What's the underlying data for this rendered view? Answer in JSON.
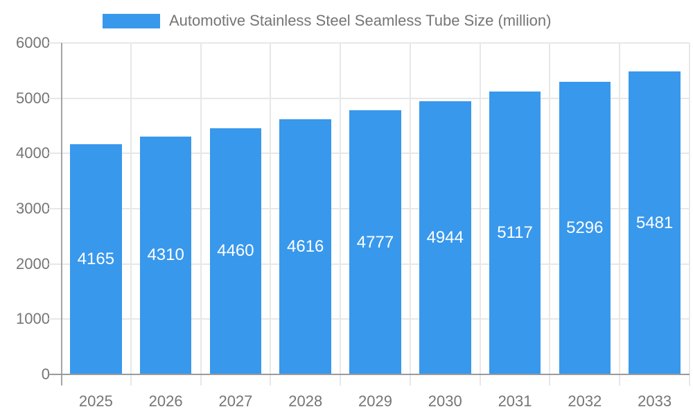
{
  "legend": {
    "label": "Automotive Stainless Steel Seamless Tube Size (million)"
  },
  "chart_data": {
    "type": "bar",
    "title": "",
    "xlabel": "",
    "ylabel": "",
    "categories": [
      "2025",
      "2026",
      "2027",
      "2028",
      "2029",
      "2030",
      "2031",
      "2032",
      "2033"
    ],
    "series": [
      {
        "name": "Automotive Stainless Steel Seamless Tube Size (million)",
        "values": [
          4165,
          4310,
          4460,
          4616,
          4777,
          4944,
          5117,
          5296,
          5481
        ]
      }
    ],
    "bar_value_labels": [
      "4165",
      "4310",
      "4460",
      "4616",
      "4777",
      "4944",
      "5117",
      "5296",
      "5481"
    ],
    "bar_label_position": "center-inside",
    "ylim": [
      0,
      6000
    ],
    "yticks": [
      0,
      1000,
      2000,
      3000,
      4000,
      5000,
      6000
    ],
    "ytick_labels": [
      "0",
      "1000",
      "2000",
      "3000",
      "4000",
      "5000",
      "6000"
    ],
    "grid": true,
    "legend_position": "top",
    "colors": {
      "bar": "#3898ec",
      "bar_label": "#ffffff",
      "axis_text": "#757575",
      "gridline": "#e7e7e7",
      "axis_line": "#9a9a9a",
      "background": "#ffffff"
    }
  }
}
